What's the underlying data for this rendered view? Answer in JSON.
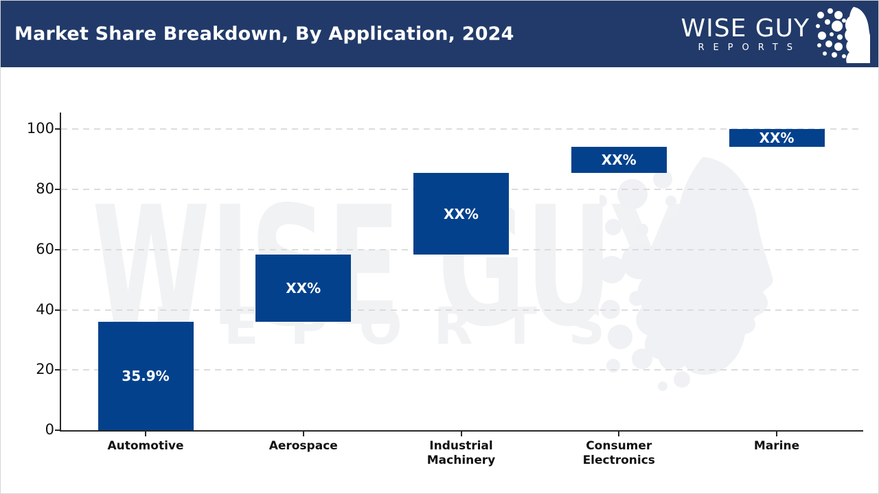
{
  "header": {
    "title": "Market Share Breakdown, By Application, 2024",
    "bg_color": "#213a69",
    "logo_line1": "WISE GUY",
    "logo_line2": "REPORTS"
  },
  "watermark": {
    "line1": "WISE GUY",
    "line2": "REPORTS"
  },
  "chart_data": {
    "type": "bar",
    "variant": "waterfall",
    "title": "Market Share Breakdown, By Application, 2024",
    "categories": [
      "Automotive",
      "Aerospace",
      "Industrial Machinery",
      "Consumer Electronics",
      "Marine"
    ],
    "category_label_lines": [
      [
        "Automotive"
      ],
      [
        "Aerospace"
      ],
      [
        "Industrial",
        "Machinery"
      ],
      [
        "Consumer",
        "Electronics"
      ],
      [
        "Marine"
      ]
    ],
    "segments": [
      {
        "category": "Automotive",
        "start": 0,
        "end": 35.9,
        "label": "35.9%"
      },
      {
        "category": "Aerospace",
        "start": 35.9,
        "end": 58.3,
        "label": "XX%"
      },
      {
        "category": "Industrial Machinery",
        "start": 58.3,
        "end": 85.4,
        "label": "XX%"
      },
      {
        "category": "Consumer Electronics",
        "start": 85.4,
        "end": 94.2,
        "label": "XX%"
      },
      {
        "category": "Marine",
        "start": 94.2,
        "end": 100,
        "label": "XX%"
      }
    ],
    "yticks": [
      0,
      20,
      40,
      60,
      80,
      100
    ],
    "ylim": [
      0,
      105
    ],
    "xlabel": "",
    "ylabel": "",
    "grid": "horizontal-dashed",
    "bar_color": "#04418c",
    "bar_label_color": "#ffffff",
    "legend": null
  }
}
